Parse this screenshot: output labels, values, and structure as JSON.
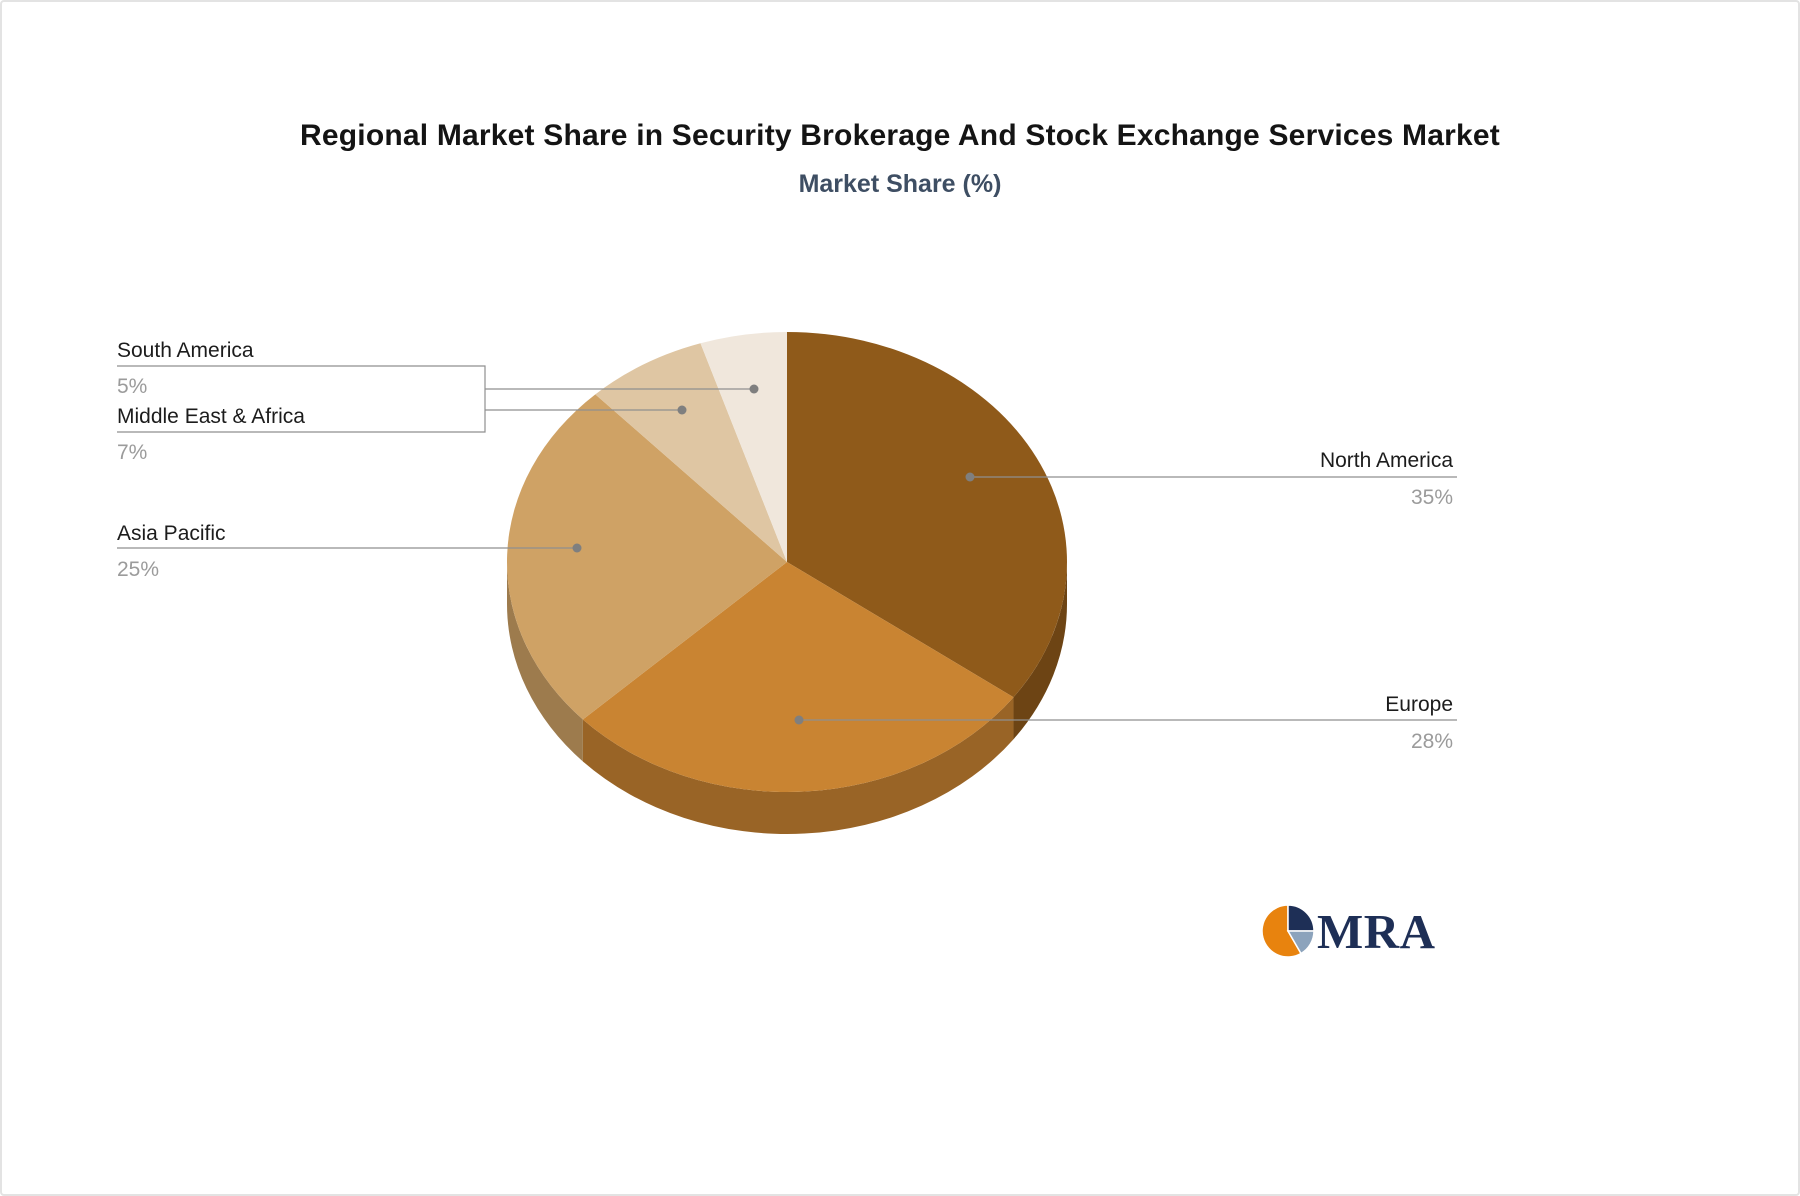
{
  "chart_data": {
    "type": "pie",
    "title": "Regional Market Share in Security Brokerage And Stock Exchange Services Market",
    "subtitle": "Market Share (%)",
    "unit": "%",
    "categories": [
      "North America",
      "Europe",
      "Asia Pacific",
      "Middle East & Africa",
      "South America"
    ],
    "values": [
      35,
      28,
      25,
      7,
      5
    ],
    "labels": [
      "35%",
      "28%",
      "25%",
      "7%",
      "5%"
    ],
    "colors": [
      "#8F5A1A",
      "#C98432",
      "#CFA265",
      "#DFC6A3",
      "#F0E7DC"
    ],
    "style": "3d",
    "start_angle_deg": 0,
    "direction": "clockwise",
    "legend_position": "none",
    "leader_line_color": "#8f8f8f",
    "leader_dot_color": "#7f7f7f",
    "label_name_color": "#1c1c1c",
    "label_pct_color": "#9b9b9b",
    "subtitle_color": "#3E4E63"
  },
  "logo": {
    "text": "MRA",
    "text_color": "#1E2F56",
    "icon_colors": [
      "#E8830E",
      "#1E2F56",
      "#8CA3BC"
    ]
  }
}
